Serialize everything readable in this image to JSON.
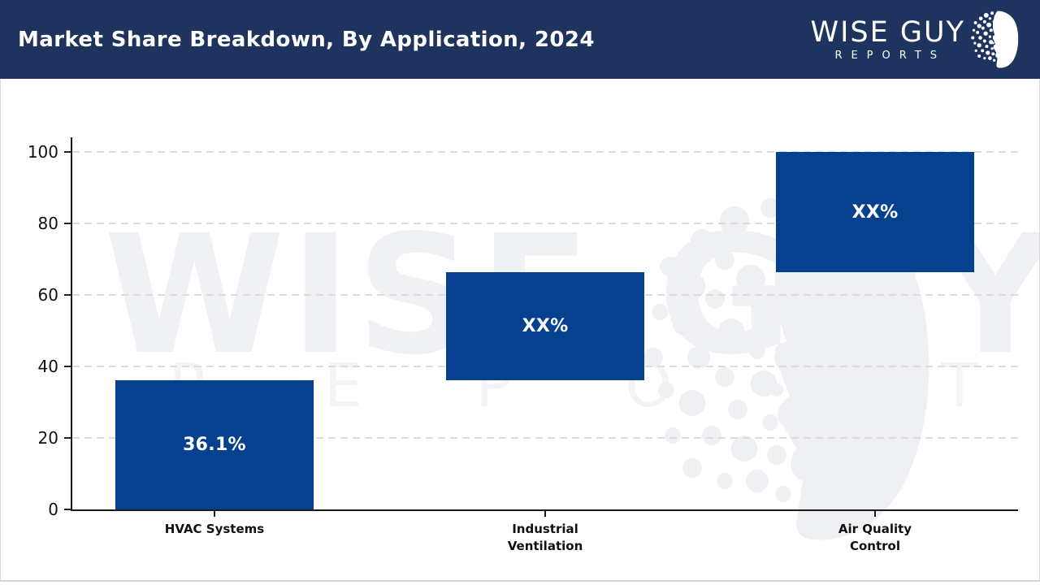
{
  "header": {
    "title": "Market Share Breakdown, By Application, 2024",
    "logo": {
      "wordmark": "WISE GUY",
      "subtext": "REPORTS"
    }
  },
  "watermark": {
    "wordmark": "WISE GUY",
    "subtext": "R E P O R T S"
  },
  "chart_data": {
    "type": "bar",
    "subtype": "waterfall-floating-segments",
    "title": "Market Share Breakdown, By Application, 2024",
    "categories": [
      "HVAC Systems",
      "Industrial Ventilation",
      "Air Quality Control"
    ],
    "category_lines": [
      [
        "HVAC Systems"
      ],
      [
        "Industrial",
        "Ventilation"
      ],
      [
        "Air Quality",
        "Control"
      ]
    ],
    "segments": [
      {
        "category": "HVAC Systems",
        "start": 0,
        "end": 36.1,
        "label": "36.1%"
      },
      {
        "category": "Industrial Ventilation",
        "start": 36.1,
        "end": 66.3,
        "label": "XX%"
      },
      {
        "category": "Air Quality Control",
        "start": 66.3,
        "end": 100,
        "label": "XX%"
      }
    ],
    "ylim": [
      0,
      100
    ],
    "yticks": [
      0,
      20,
      40,
      60,
      80,
      100
    ],
    "xlabel": "",
    "ylabel": "",
    "legend": "none",
    "grid": {
      "axis": "y",
      "style": "dashed",
      "color": "#dcdcdc"
    },
    "colors": {
      "bar": "#06418f",
      "bar_label": "#ffffff",
      "axis": "#1a1a1a",
      "tick_label": "#111111",
      "header_bg": "#1e345f",
      "watermark": "#f0f1f4"
    }
  }
}
